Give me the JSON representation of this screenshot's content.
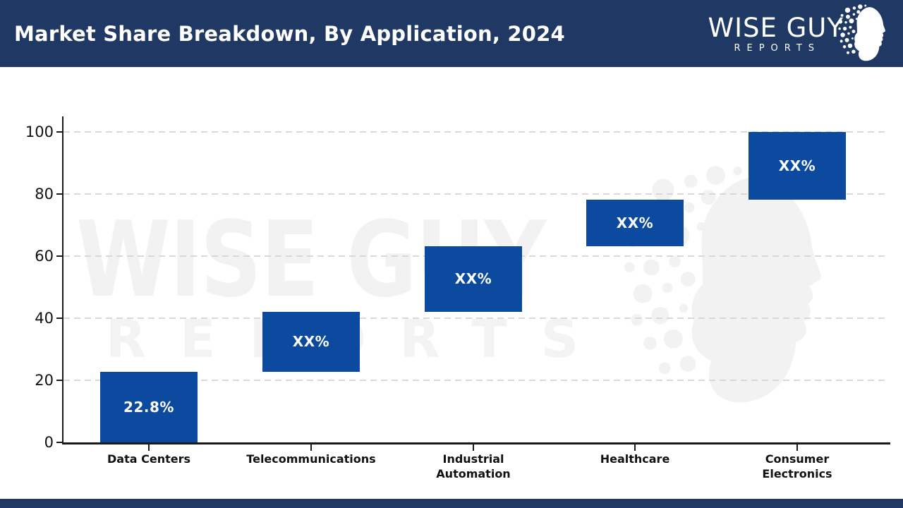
{
  "header": {
    "title": "Market Share Breakdown, By Application, 2024",
    "logo": {
      "line1": "WISE GUY",
      "line2": "REPORTS"
    }
  },
  "watermark": {
    "line1": "WISE GUY",
    "line2": "REPORTS"
  },
  "chart_data": {
    "type": "bar",
    "subtype": "waterfall",
    "title": "Market Share Breakdown, By Application, 2024",
    "categories": [
      "Data Centers",
      "Telecommunications",
      "Industrial\nAutomation",
      "Healthcare",
      "Consumer\nElectronics"
    ],
    "segments": [
      {
        "category": "Data Centers",
        "start": 0,
        "end": 22.8,
        "label": "22.8%"
      },
      {
        "category": "Telecommunications",
        "start": 22.8,
        "end": 42.1,
        "label": "XX%"
      },
      {
        "category": "Industrial Automation",
        "start": 42.1,
        "end": 63.2,
        "label": "XX%"
      },
      {
        "category": "Healthcare",
        "start": 63.2,
        "end": 78.2,
        "label": "XX%"
      },
      {
        "category": "Consumer Electronics",
        "start": 78.2,
        "end": 100,
        "label": "XX%"
      }
    ],
    "ylim": [
      0,
      100
    ],
    "yticks": [
      0,
      20,
      40,
      60,
      80,
      100
    ],
    "xlabel": "",
    "ylabel": "",
    "grid": "horizontal-dashed",
    "legend": "none",
    "bar_color": "#0b4a9f"
  },
  "colors": {
    "header_bg": "#1f3864",
    "footer_bg": "#1f3864",
    "bar": "#0b4a9f",
    "grid": "#d8d8d8",
    "axis": "#1a1a1a",
    "watermark": "#f2f2f2",
    "title_text": "#ffffff",
    "bar_label_text": "#ffffff"
  }
}
